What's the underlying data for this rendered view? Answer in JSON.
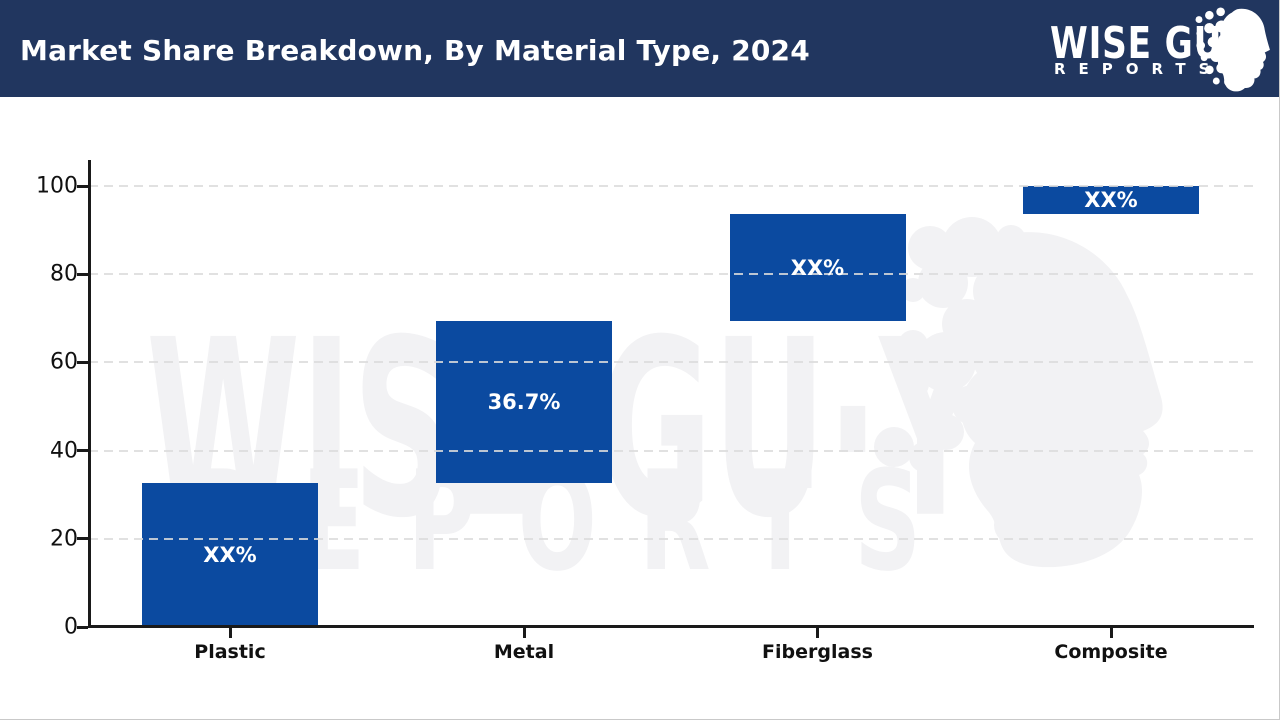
{
  "header": {
    "title": "Market Share Breakdown, By Material Type, 2024",
    "brand": {
      "line1": "WISE GUY",
      "line2": "REPORTS",
      "logo_icon": "dotted-face-profile"
    },
    "background_color": "#21365f"
  },
  "watermark": {
    "line1": "WISE GU·Y",
    "line2": "REPORTS",
    "icon": "dotted-face-profile",
    "color": "#f2f2f4"
  },
  "chart_data": {
    "type": "bar",
    "subtype": "floating-segment-waterfall",
    "title": "Market Share Breakdown, By Material Type, 2024",
    "categories": [
      "Plastic",
      "Metal",
      "Fiberglass",
      "Composite"
    ],
    "segments": [
      {
        "category": "Plastic",
        "start": 0,
        "end": 32.6,
        "label": "XX%"
      },
      {
        "category": "Metal",
        "start": 32.6,
        "end": 69.3,
        "label": "36.7%"
      },
      {
        "category": "Fiberglass",
        "start": 69.3,
        "end": 93.7,
        "label": "XX%"
      },
      {
        "category": "Composite",
        "start": 93.7,
        "end": 100,
        "label": "XX%"
      }
    ],
    "yticks": [
      0,
      20,
      40,
      60,
      80,
      100
    ],
    "ylim": [
      0,
      106
    ],
    "xlabel": "",
    "ylabel": "",
    "grid": "dashed-horizontal-above-bars",
    "legend": "none",
    "bar_color": "#0b4aa0",
    "bar_label_color": "#ffffff",
    "axis_color": "#1a1a1a",
    "gridline_color": "#dcdcdc"
  }
}
